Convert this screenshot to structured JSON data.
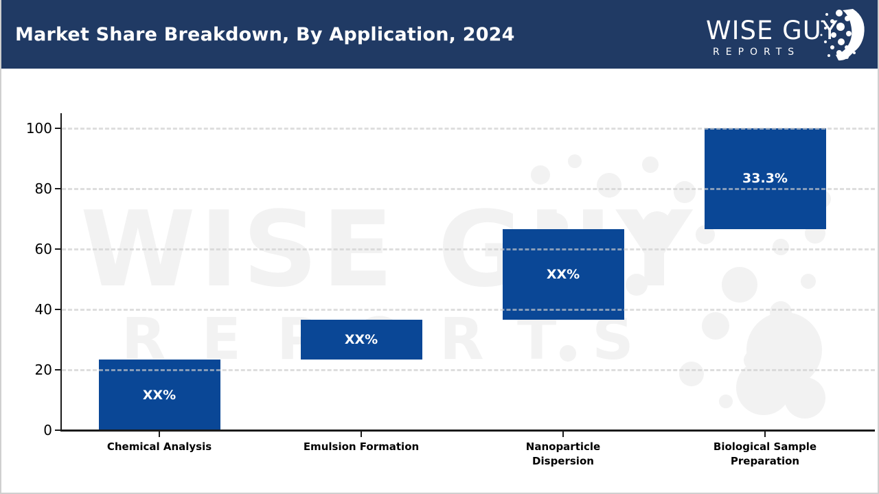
{
  "header": {
    "title": "Market Share Breakdown, By Application, 2024",
    "logo_line1": "WISE GUY",
    "logo_line2": "REPORTS",
    "background_color": "#203A64"
  },
  "watermark": {
    "line1": "WISE GUY",
    "line2": "REPORTS"
  },
  "chart_data": {
    "type": "bar",
    "variant": "floating-segment-breakdown",
    "title": "Market Share Breakdown, By Application, 2024",
    "categories": [
      "Chemical Analysis",
      "Emulsion Formation",
      "Nanoparticle Dispersion",
      "Biological Sample Preparation"
    ],
    "bars": [
      {
        "category": "Chemical Analysis",
        "tick_label": "Chemical Analysis",
        "start": 0,
        "end": 23.3,
        "value": 23.3,
        "label": "XX%"
      },
      {
        "category": "Emulsion Formation",
        "tick_label": "Emulsion Formation",
        "start": 23.3,
        "end": 36.7,
        "value": 13.4,
        "label": "XX%"
      },
      {
        "category": "Nanoparticle Dispersion",
        "tick_label": "Nanoparticle\nDispersion",
        "start": 36.7,
        "end": 66.7,
        "value": 30.0,
        "label": "XX%"
      },
      {
        "category": "Biological Sample Preparation",
        "tick_label": "Biological Sample\nPreparation",
        "start": 66.7,
        "end": 100,
        "value": 33.3,
        "label": "33.3%"
      }
    ],
    "yticks": [
      0,
      20,
      40,
      60,
      80,
      100
    ],
    "ytick_labels": [
      "0",
      "20",
      "40",
      "60",
      "80",
      "100"
    ],
    "ylim": [
      0,
      105
    ],
    "xlabel": "",
    "ylabel": "",
    "bar_color": "#0a4796",
    "grid": "horizontal-dashed",
    "legend": "none"
  }
}
